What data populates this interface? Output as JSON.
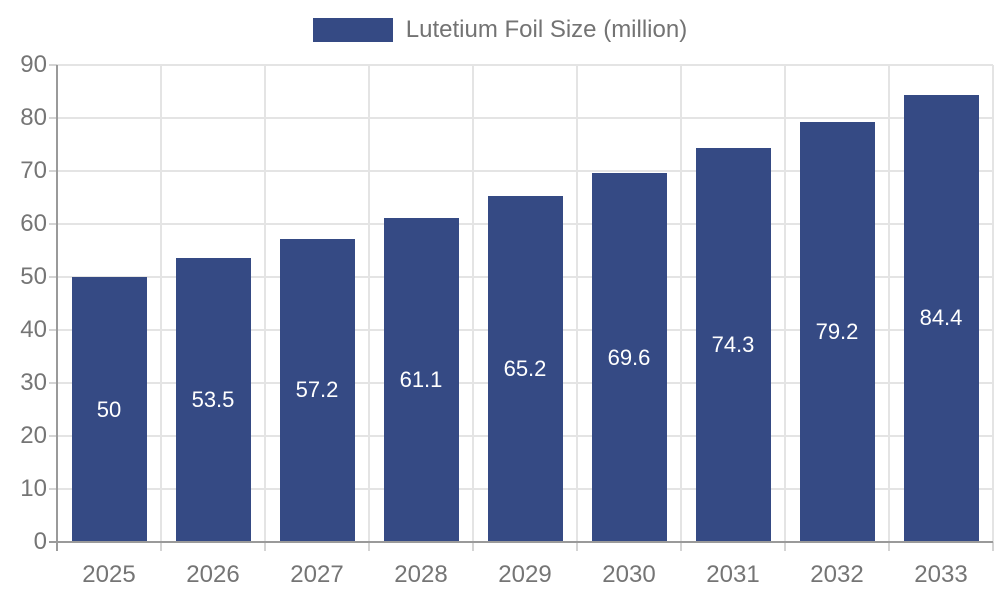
{
  "legend": {
    "label": "Lutetium Foil Size (million)"
  },
  "chart_data": {
    "type": "bar",
    "title": "",
    "legend_entries": [
      "Lutetium Foil Size (million)"
    ],
    "legend_position": "top-center",
    "categories": [
      "2025",
      "2026",
      "2027",
      "2028",
      "2029",
      "2030",
      "2031",
      "2032",
      "2033"
    ],
    "values": [
      50,
      53.5,
      57.2,
      61.1,
      65.2,
      69.6,
      74.3,
      79.2,
      84.4
    ],
    "value_labels": [
      "50",
      "53.5",
      "57.2",
      "61.1",
      "65.2",
      "69.6",
      "74.3",
      "79.2",
      "84.4"
    ],
    "xlabel": "",
    "ylabel": "",
    "ylim": [
      0,
      90
    ],
    "ytick_step": 10,
    "ytick_labels": [
      "0",
      "10",
      "20",
      "30",
      "40",
      "50",
      "60",
      "70",
      "80",
      "90"
    ],
    "grid": true,
    "value_labels_position": "inside-center",
    "colors": {
      "bar": "#354a84",
      "bar_label": "#ffffff",
      "axis_label": "#757575",
      "legend_text": "#737373",
      "gridline": "#e4e4e4",
      "tick": "#d4d4d4",
      "axis_line": "#9a9a9a",
      "background": "#ffffff"
    }
  }
}
